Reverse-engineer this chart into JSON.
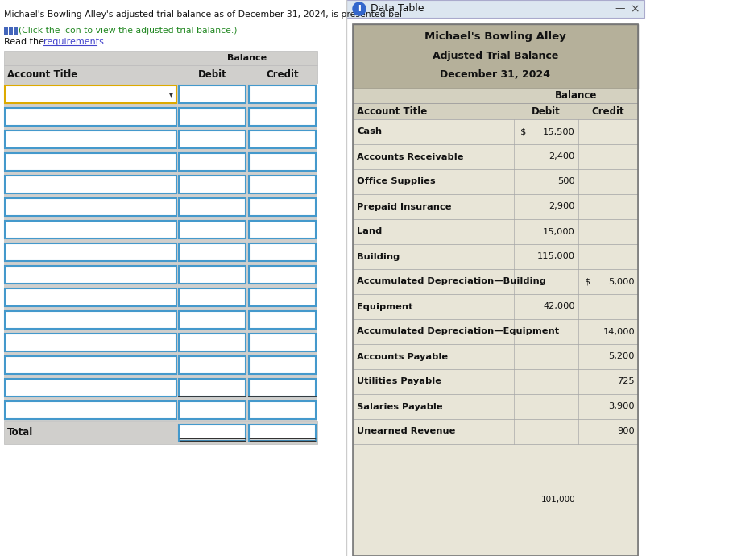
{
  "title_line1": "Michael's Bowling Alley",
  "title_line2": "Adjusted Trial Balance",
  "title_line3": "December 31, 2024",
  "header_bg": "#b5b09a",
  "subheader_bg": "#d4d1c0",
  "row_bg": "#e8e5d7",
  "left_header_bg": "#d0cfcc",
  "input_border": "#4499cc",
  "input_first_border": "#ddaa00",
  "page_bg": "#ffffff",
  "title_bar_bg": "#dce6f0",
  "title_bar_text": "Data Table",
  "title_bar_icon_color": "#3366cc",
  "accounts": [
    [
      "Cash",
      "$",
      "15,500",
      "",
      ""
    ],
    [
      "Accounts Receivable",
      "",
      "2,400",
      "",
      ""
    ],
    [
      "Office Supplies",
      "",
      "500",
      "",
      ""
    ],
    [
      "Prepaid Insurance",
      "",
      "2,900",
      "",
      ""
    ],
    [
      "Land",
      "",
      "15,000",
      "",
      ""
    ],
    [
      "Building",
      "",
      "115,000",
      "",
      ""
    ],
    [
      "Accumulated Depreciation—Building",
      "",
      "",
      "$",
      "5,000"
    ],
    [
      "Equipment",
      "",
      "42,000",
      "",
      ""
    ],
    [
      "Accumulated Depreciation—Equipment",
      "",
      "",
      "",
      "14,000"
    ],
    [
      "Accounts Payable",
      "",
      "",
      "",
      "5,200"
    ],
    [
      "Utilities Payable",
      "",
      "",
      "",
      "725"
    ],
    [
      "Salaries Payable",
      "",
      "",
      "",
      "3,900"
    ],
    [
      "Unearned Revenue",
      "",
      "",
      "",
      "900"
    ]
  ],
  "num_input_rows": 15,
  "col_account": "Account Title",
  "col_debit": "Debit",
  "col_credit": "Credit"
}
